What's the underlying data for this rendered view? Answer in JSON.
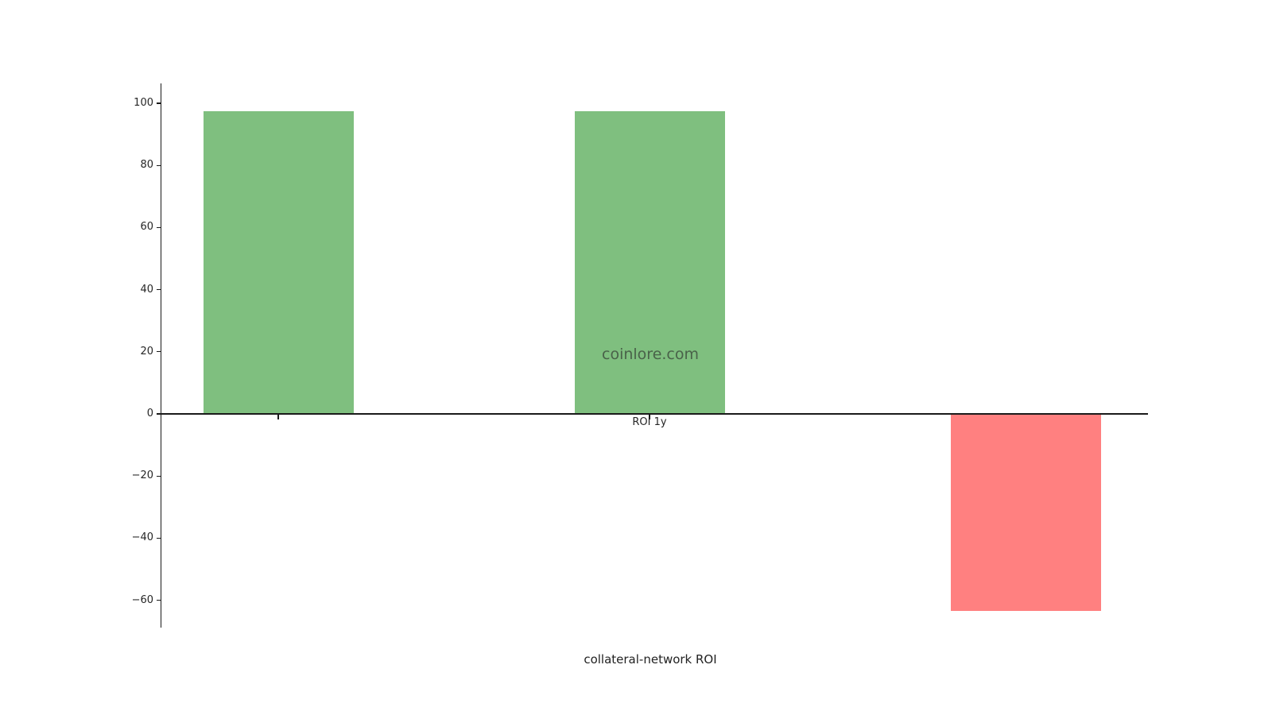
{
  "chart_data": {
    "type": "bar",
    "title": "collateral-network ROI",
    "watermark": "coinlore.com",
    "categories": [
      "",
      "ROI 1y",
      ""
    ],
    "values": [
      97.4,
      97.4,
      -63.3
    ],
    "bar_colors": [
      "#7fbf7f",
      "#7fbf7f",
      "#ff8080"
    ],
    "yticks": [
      100,
      80,
      60,
      40,
      20,
      0,
      -20,
      -40,
      -60
    ],
    "ylim": [
      -69,
      106
    ],
    "xlabel": "",
    "ylabel": "",
    "legend_position": "none",
    "grid": false,
    "background_color": "#ffffff",
    "axis_color": "#1a1a1a",
    "tick_text_color": "#262626",
    "title_color": "#222222"
  }
}
